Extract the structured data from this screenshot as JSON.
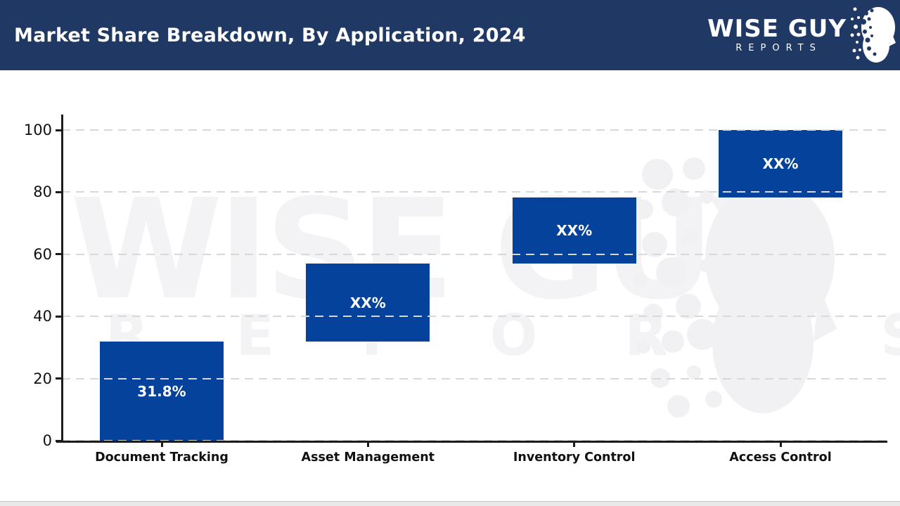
{
  "header": {
    "title": "Market Share Breakdown, By Application, 2024",
    "logo": {
      "line1": "WISE GUY",
      "line2": "REPORTS"
    }
  },
  "watermark": {
    "line1": "WISE GUY.",
    "line2": "R E P O R T S"
  },
  "chart_data": {
    "type": "bar",
    "subtype": "waterfall",
    "title": "Market Share Breakdown, By Application, 2024",
    "categories": [
      "Document Tracking",
      "Asset Management",
      "Inventory Control",
      "Access Control"
    ],
    "bars": [
      {
        "category": "Document Tracking",
        "start": 0,
        "end": 31.8,
        "label": "31.8%"
      },
      {
        "category": "Asset Management",
        "start": 31.8,
        "end": 57.1,
        "label": "XX%"
      },
      {
        "category": "Inventory Control",
        "start": 57.1,
        "end": 78.3,
        "label": "XX%"
      },
      {
        "category": "Access Control",
        "start": 78.3,
        "end": 100,
        "label": "XX%"
      }
    ],
    "y_ticks": [
      0,
      20,
      40,
      60,
      80,
      100
    ],
    "ylim": [
      0,
      100
    ],
    "xlabel": "",
    "ylabel": "",
    "grid": "horizontal-dashed",
    "legend": "none",
    "bar_color": "#04429b",
    "bar_label_color": "#ffffff"
  },
  "colors": {
    "header_bg": "#1f3864",
    "bar_blue": "#04429b",
    "gridline": "#d8d8d8",
    "axis": "#1c1c1c",
    "watermark": "#f3f3f5",
    "footer_bg": "#e9e9e9"
  }
}
